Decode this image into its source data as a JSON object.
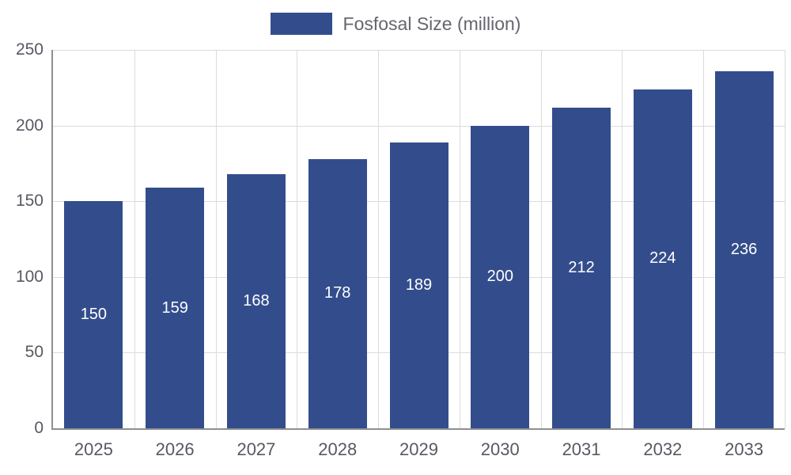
{
  "chart_data": {
    "type": "bar",
    "title": "Fosfosal Size (million)",
    "legend_label": "Fosfosal Size (million)",
    "categories": [
      "2025",
      "2026",
      "2027",
      "2028",
      "2029",
      "2030",
      "2031",
      "2032",
      "2033"
    ],
    "values": [
      150,
      159,
      168,
      178,
      189,
      200,
      212,
      224,
      236
    ],
    "xlabel": "",
    "ylabel": "",
    "ylim": [
      0,
      250
    ],
    "yticks": [
      0,
      50,
      100,
      150,
      200,
      250
    ],
    "grid": true,
    "legend_position": "top",
    "value_labels": "inside-center",
    "colors": {
      "bar": "#334d8c",
      "grid_line": "#dcdcdc",
      "axis_line": "#8f8f8f",
      "tick_text": "#585862",
      "legend_text": "#65656f",
      "value_text": "#ffffff"
    }
  }
}
